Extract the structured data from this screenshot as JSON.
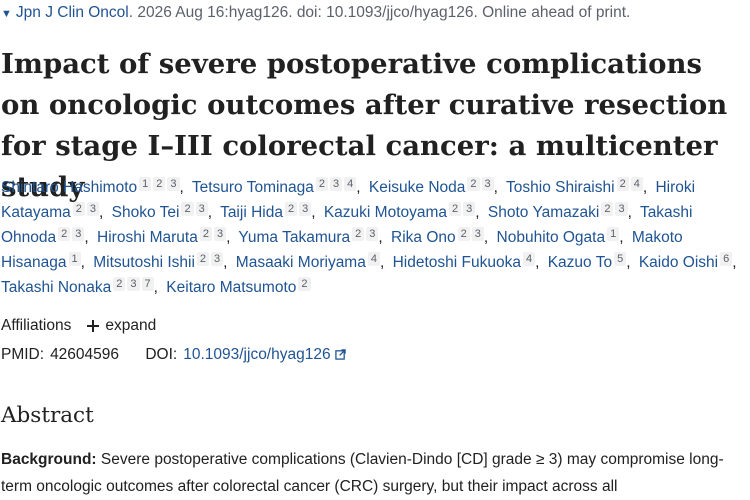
{
  "citation": {
    "journal": "Jpn J Clin Oncol",
    "details": ". 2026 Aug 16:hyag126. doi: 10.1093/jjco/hyag126. Online ahead of print."
  },
  "title": "Impact of severe postoperative complications on oncologic outcomes after curative resection for stage I–III colorectal cancer: a multicenter study",
  "authors": [
    {
      "name": "Shintaro Hashimoto",
      "affs": [
        "1",
        "2",
        "3"
      ]
    },
    {
      "name": "Tetsuro Tominaga",
      "affs": [
        "2",
        "3",
        "4"
      ]
    },
    {
      "name": "Keisuke Noda",
      "affs": [
        "2",
        "3"
      ]
    },
    {
      "name": "Toshio Shiraishi",
      "affs": [
        "2",
        "4"
      ]
    },
    {
      "name": "Hiroki Katayama",
      "affs": [
        "2",
        "3"
      ]
    },
    {
      "name": "Shoko Tei",
      "affs": [
        "2",
        "3"
      ]
    },
    {
      "name": "Taiji Hida",
      "affs": [
        "2",
        "3"
      ]
    },
    {
      "name": "Kazuki Motoyama",
      "affs": [
        "2",
        "3"
      ]
    },
    {
      "name": "Shoto Yamazaki",
      "affs": [
        "2",
        "3"
      ]
    },
    {
      "name": "Takashi Ohnoda",
      "affs": [
        "2",
        "3"
      ]
    },
    {
      "name": "Hiroshi Maruta",
      "affs": [
        "2",
        "3"
      ]
    },
    {
      "name": "Yuma Takamura",
      "affs": [
        "2",
        "3"
      ]
    },
    {
      "name": "Rika Ono",
      "affs": [
        "2",
        "3"
      ]
    },
    {
      "name": "Nobuhito Ogata",
      "affs": [
        "1"
      ]
    },
    {
      "name": "Makoto Hisanaga",
      "affs": [
        "1"
      ]
    },
    {
      "name": "Mitsutoshi Ishii",
      "affs": [
        "2",
        "3"
      ]
    },
    {
      "name": "Masaaki Moriyama",
      "affs": [
        "4"
      ]
    },
    {
      "name": "Hidetoshi Fukuoka",
      "affs": [
        "4"
      ]
    },
    {
      "name": "Kazuo To",
      "affs": [
        "5"
      ]
    },
    {
      "name": "Kaido Oishi",
      "affs": [
        "6"
      ]
    },
    {
      "name": "Takashi Nonaka",
      "affs": [
        "2",
        "3",
        "7"
      ]
    },
    {
      "name": "Keitaro Matsumoto",
      "affs": [
        "2"
      ]
    }
  ],
  "affiliations": {
    "label": "Affiliations",
    "expand_label": "expand"
  },
  "ids": {
    "pmid_label": "PMID:",
    "pmid": "42604596",
    "doi_label": "DOI:",
    "doi": "10.1093/jjco/hyag126"
  },
  "abstract": {
    "heading": "Abstract",
    "background_label": "Background:",
    "background_text": " Severe postoperative complications (Clavien-Dindo [CD] grade ≥ 3) may compromise long-term oncologic outcomes after colorectal cancer (CRC) surgery, but their impact across all"
  },
  "colors": {
    "link": "#205493",
    "text": "#212121"
  }
}
